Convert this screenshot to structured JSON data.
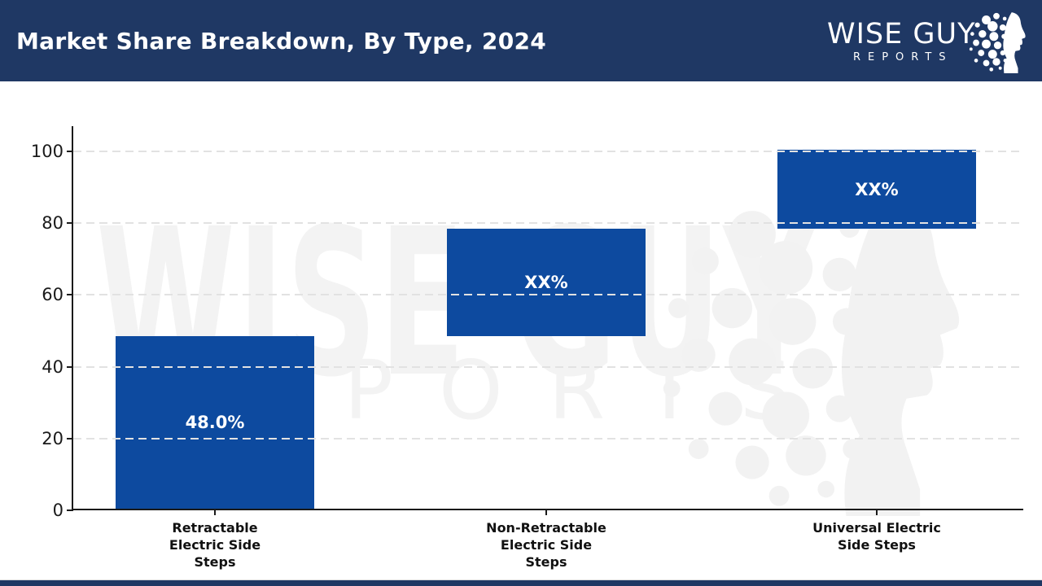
{
  "header": {
    "title": "Market Share Breakdown, By Type, 2024",
    "background_color": "#1f3864",
    "logo": {
      "line1": "WISE GUY",
      "line2": "REPORTS"
    }
  },
  "watermark": {
    "line1": "WISE GUY",
    "line2": "REPORTS"
  },
  "chart_data": {
    "type": "bar",
    "subtype": "waterfall",
    "title": "Market Share Breakdown, By Type, 2024",
    "categories": [
      "Retractable Electric Side Steps",
      "Non-Retractable Electric Side Steps",
      "Universal Electric Side Steps"
    ],
    "category_lines": [
      [
        "Retractable",
        "Electric Side",
        "Steps"
      ],
      [
        "Non-Retractable",
        "Electric Side",
        "Steps"
      ],
      [
        "Universal Electric",
        "Side Steps"
      ]
    ],
    "series": [
      {
        "name": "Market Share (%)",
        "values": [
          48.0,
          30.0,
          22.0
        ],
        "bottoms": [
          0,
          48,
          78
        ],
        "tops": [
          48,
          78,
          100
        ]
      }
    ],
    "bar_labels": [
      "48.0%",
      "XX%",
      "XX%"
    ],
    "xlabel": "",
    "ylabel": "",
    "ylim": [
      0,
      107
    ],
    "yticks": [
      0,
      20,
      40,
      60,
      80,
      100
    ],
    "grid": "horizontal dashed",
    "legend": "none",
    "bar_color": "#0d4a9f",
    "bar_label_color": "#ffffff",
    "gridline_color": "#e2e2e2"
  }
}
